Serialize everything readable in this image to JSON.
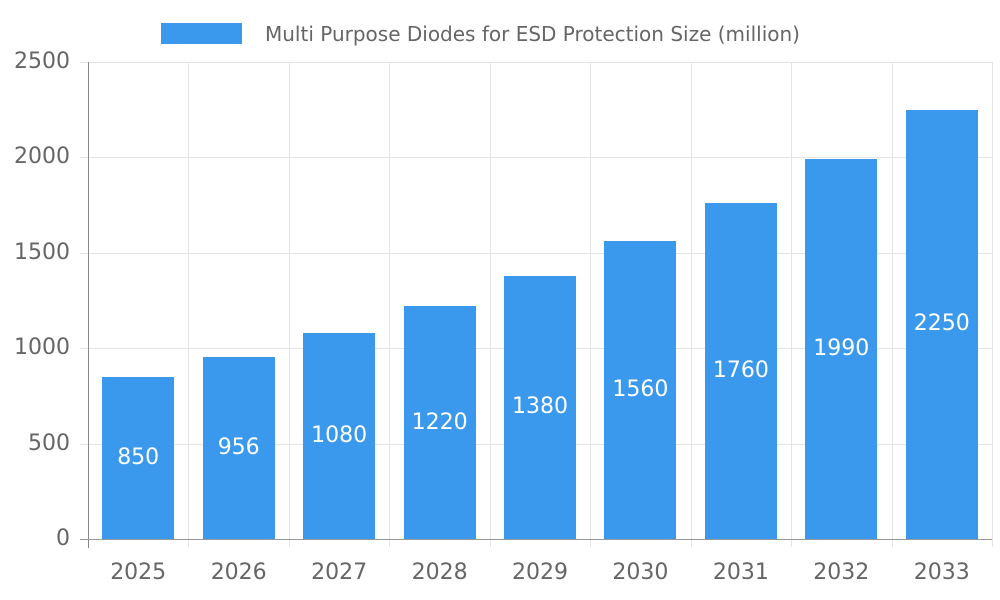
{
  "legend": {
    "label": "Multi Purpose Diodes for ESD Protection Size (million)"
  },
  "chart_data": {
    "type": "bar",
    "title": "Multi Purpose Diodes for ESD Protection Size (million)",
    "categories": [
      "2025",
      "2026",
      "2027",
      "2028",
      "2029",
      "2030",
      "2031",
      "2032",
      "2033"
    ],
    "values": [
      850,
      956,
      1080,
      1220,
      1380,
      1560,
      1760,
      1990,
      2250
    ],
    "xlabel": "",
    "ylabel": "",
    "ylim": [
      0,
      2500
    ],
    "yticks": [
      0,
      500,
      1000,
      1500,
      2000,
      2500
    ],
    "grid": true,
    "legend_position": "top-center",
    "value_labels": "inside-center-white"
  },
  "colors": {
    "bar": "#3A99EC",
    "grid": "#E4E4E4",
    "y_axis_line": "#888888",
    "x_axis_line": "#999999",
    "tick_label": "#666666",
    "legend_text": "#666666",
    "value_label": "#FFFFFF",
    "background": "#FFFFFF"
  }
}
